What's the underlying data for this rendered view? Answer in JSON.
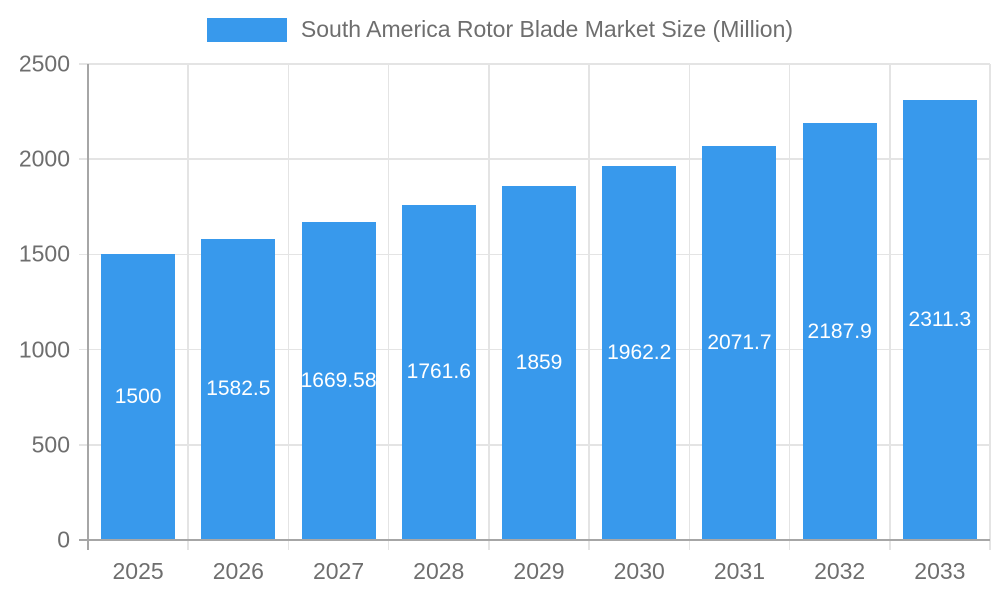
{
  "chart_data": {
    "type": "bar",
    "title": "South America Rotor Blade Market Size (Million)",
    "categories": [
      "2025",
      "2026",
      "2027",
      "2028",
      "2029",
      "2030",
      "2031",
      "2032",
      "2033"
    ],
    "values": [
      1500,
      1582.5,
      1669.58,
      1761.6,
      1859,
      1962.2,
      2071.7,
      2187.9,
      2311.3
    ],
    "value_labels": [
      "1500",
      "1582.5",
      "1669.58",
      "1761.6",
      "1859",
      "1962.2",
      "2071.7",
      "2187.9",
      "2311.3"
    ],
    "xlabel": "",
    "ylabel": "",
    "ylim": [
      0,
      2500
    ],
    "yticks": [
      0,
      500,
      1000,
      1500,
      2000,
      2500
    ],
    "grid": true,
    "legend_position": "top",
    "series_name": "South America Rotor Blade Market Size (Million)",
    "colors": {
      "bar": "#3899EC",
      "grid": "#E4E4E4",
      "axis": "#A6A6A6",
      "tick_text": "#6E6E6E",
      "value_label_text": "#FFFFFF",
      "background": "#FFFFFF"
    }
  }
}
